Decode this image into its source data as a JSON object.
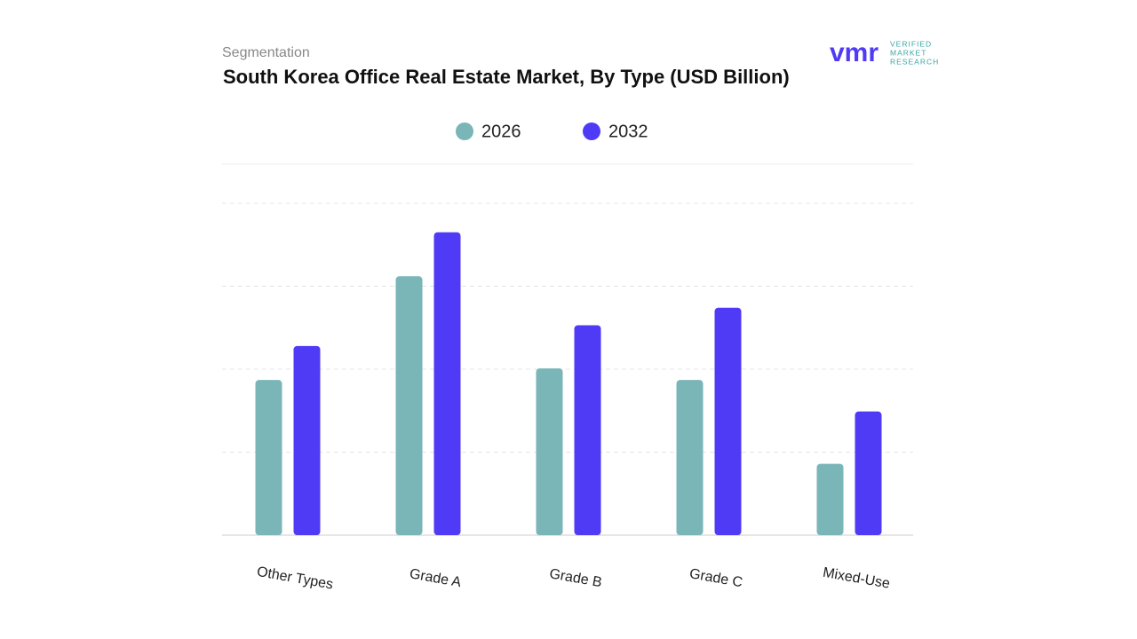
{
  "chart_data": {
    "type": "bar",
    "subtitle": "Segmentation",
    "title": "South Korea Office Real Estate Market, By Type (USD Billion)",
    "logo": {
      "mark": "vmr",
      "lines": [
        "VERIFIED",
        "MARKET",
        "RESEARCH"
      ]
    },
    "categories": [
      "Other Types",
      "Grade A",
      "Grade B",
      "Grade C",
      "Mixed-Use"
    ],
    "series": [
      {
        "name": "2026",
        "color": "#7ab5b8",
        "values": [
          1.87,
          3.12,
          2.01,
          1.87,
          0.86
        ]
      },
      {
        "name": "2032",
        "color": "#4f3af5",
        "values": [
          2.28,
          3.65,
          2.53,
          2.74,
          1.49
        ]
      }
    ],
    "ylim": [
      0,
      4
    ],
    "yticks": [
      1,
      2,
      3,
      4
    ],
    "grid": true
  }
}
